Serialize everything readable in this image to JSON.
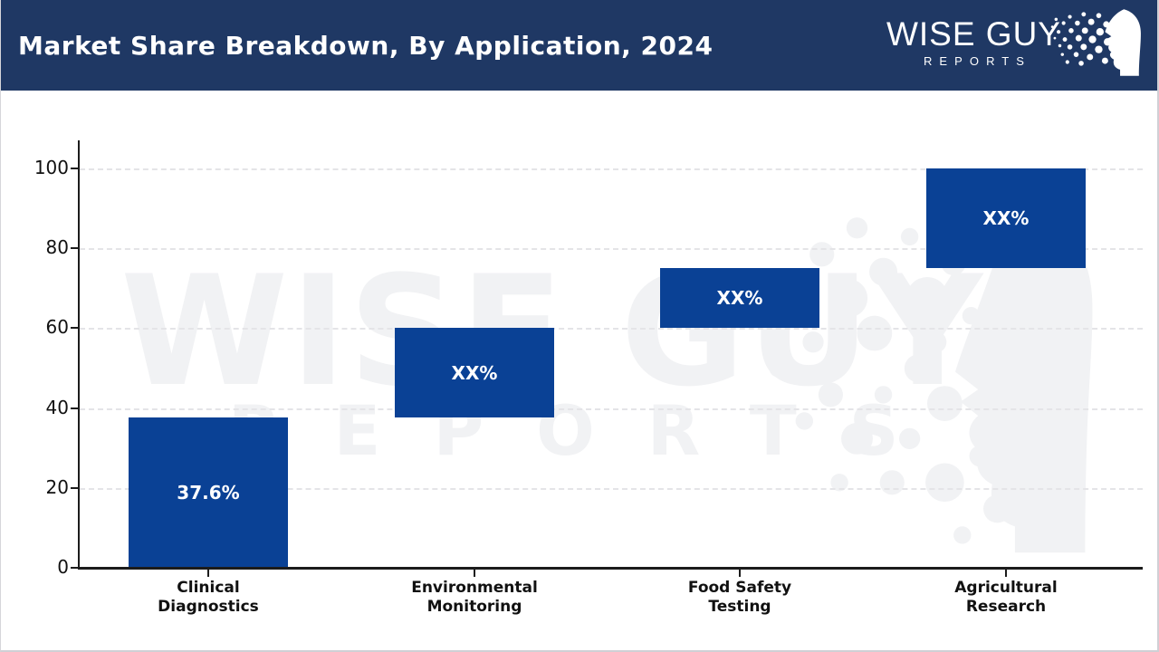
{
  "header": {
    "title": "Market Share Breakdown, By Application, 2024",
    "background_color": "#1F3864",
    "logo": {
      "line1": "WISE GUY",
      "line2": "REPORTS"
    }
  },
  "watermark": {
    "line1": "WISE GUY",
    "line2": "REPORTS",
    "color": "#F1F2F4"
  },
  "colors": {
    "header_bg": "#1F3864",
    "bar": "#0A4195",
    "bar_label": "#FFFFFF",
    "grid": "#E4E4E7",
    "axis": "#1C1C1C",
    "page_border": "#D0D0D5"
  },
  "chart_data": {
    "type": "bar",
    "subtype": "waterfall",
    "title": "Market Share Breakdown, By Application, 2024",
    "categories": [
      [
        "Clinical",
        "Diagnostics"
      ],
      [
        "Environmental",
        "Monitoring"
      ],
      [
        "Food Safety",
        "Testing"
      ],
      [
        "Agricultural",
        "Research"
      ]
    ],
    "series": [
      {
        "name": "Market share (%)",
        "points": [
          {
            "category": "Clinical Diagnostics",
            "start": 0,
            "end": 37.6,
            "label": "37.6%"
          },
          {
            "category": "Environmental Monitoring",
            "start": 37.6,
            "end": 60,
            "label": "XX%"
          },
          {
            "category": "Food Safety Testing",
            "start": 60,
            "end": 75,
            "label": "XX%"
          },
          {
            "category": "Agricultural Research",
            "start": 75,
            "end": 100,
            "label": "XX%"
          }
        ]
      }
    ],
    "ylim": [
      0,
      105
    ],
    "yticks": [
      0,
      20,
      40,
      60,
      80,
      100
    ],
    "xlabel": "",
    "ylabel": "",
    "grid": "horizontal-dashed",
    "legend_position": "none",
    "bar_color": "#0A4195",
    "bar_label_color": "#FFFFFF"
  }
}
